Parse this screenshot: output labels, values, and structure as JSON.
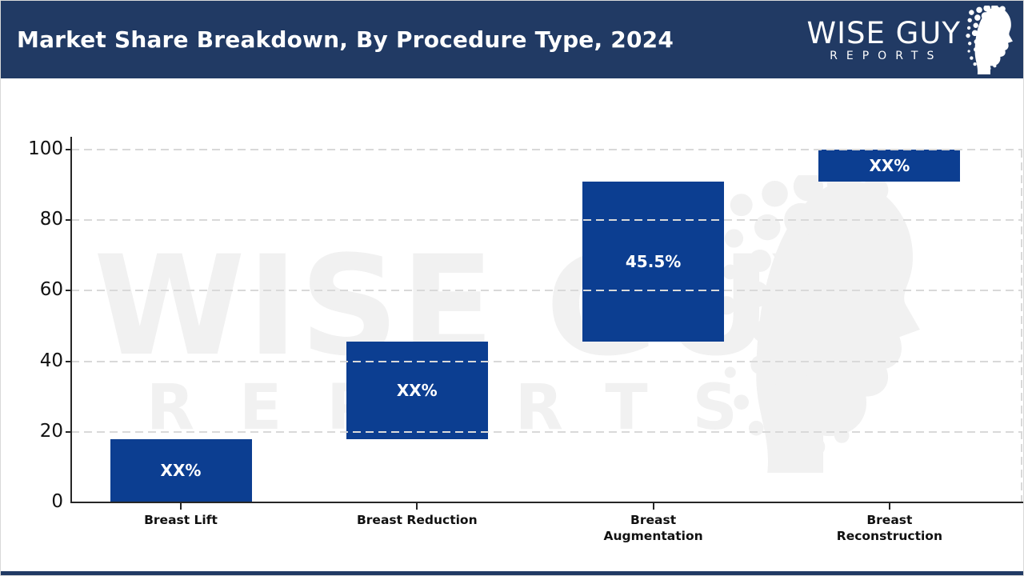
{
  "header": {
    "title": "Market Share Breakdown, By Procedure Type, 2024",
    "logo": {
      "line1": "WISE GUY",
      "line2": "REPORTS"
    }
  },
  "watermark": {
    "line1": "WISE GUY",
    "line2": "REPORTS"
  },
  "chart_data": {
    "type": "bar",
    "subtype": "waterfall",
    "title": "Market Share Breakdown, By Procedure Type, 2024",
    "xlabel": "",
    "ylabel": "",
    "ylim": [
      0,
      100
    ],
    "yticks": [
      0,
      20,
      40,
      60,
      80,
      100
    ],
    "grid": "horizontal-dashed",
    "legend": "none",
    "categories": [
      "Breast Lift",
      "Breast Reduction",
      "Breast Augmentation",
      "Breast Reconstruction"
    ],
    "segments": [
      {
        "category": "Breast Lift",
        "start": 0,
        "end": 18,
        "label": "XX%"
      },
      {
        "category": "Breast Reduction",
        "start": 18,
        "end": 45.5,
        "label": "XX%"
      },
      {
        "category": "Breast Augmentation",
        "start": 45.5,
        "end": 91,
        "label": "45.5%"
      },
      {
        "category": "Breast Reconstruction",
        "start": 91,
        "end": 100,
        "label": "XX%"
      }
    ]
  },
  "colors": {
    "header_bg": "#213a64",
    "bar": "#0c3e91",
    "axis": "#262626",
    "grid": "#d9d9d9",
    "tick_label": "#111111",
    "bar_label": "#ffffff",
    "watermark": "#f1f1f1",
    "footer_bar": "#213a64",
    "border": "#d9d9d9"
  }
}
